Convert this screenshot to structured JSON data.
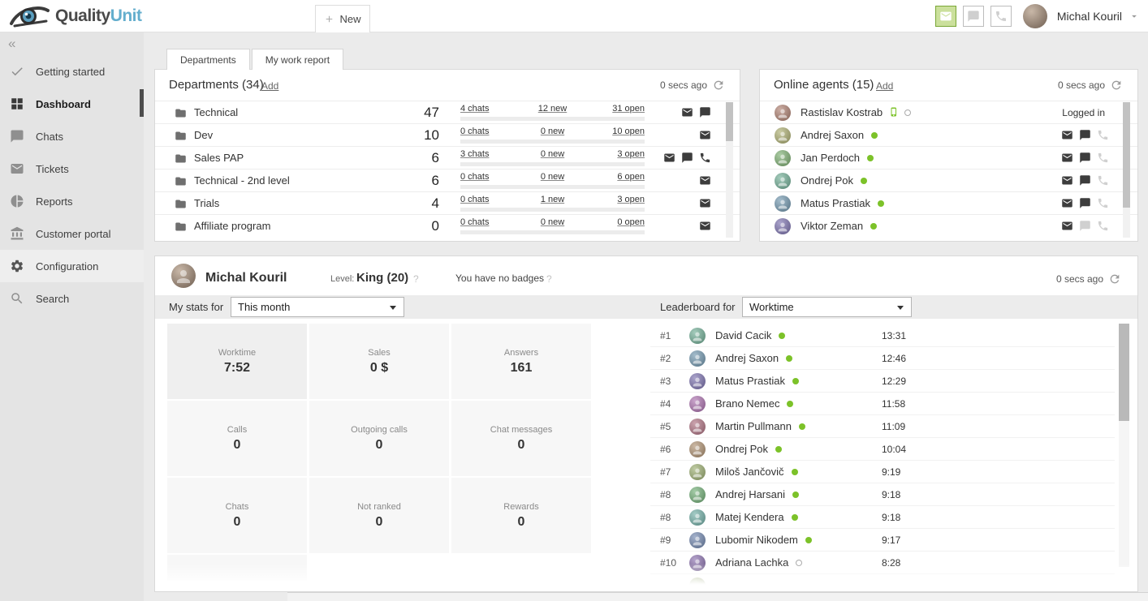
{
  "topbar": {
    "brand_quality": "Quality",
    "brand_unit": "Unit",
    "new_button": "New",
    "user_name": "Michal Kouril"
  },
  "sidebar": {
    "items": [
      {
        "label": "Getting started",
        "icon": "check-icon",
        "active": false,
        "highlighted": false
      },
      {
        "label": "Dashboard",
        "icon": "dashboard-icon",
        "active": true,
        "highlighted": false
      },
      {
        "label": "Chats",
        "icon": "chat-icon",
        "active": false,
        "highlighted": false
      },
      {
        "label": "Tickets",
        "icon": "mail-icon",
        "active": false,
        "highlighted": false
      },
      {
        "label": "Reports",
        "icon": "pie-chart-icon",
        "active": false,
        "highlighted": false
      },
      {
        "label": "Customer portal",
        "icon": "bank-icon",
        "active": false,
        "highlighted": false
      },
      {
        "label": "Configuration",
        "icon": "gear-icon",
        "active": false,
        "highlighted": true
      },
      {
        "label": "Search",
        "icon": "search-icon",
        "active": false,
        "highlighted": false
      }
    ]
  },
  "tabs": [
    {
      "label": "Departments",
      "active": true
    },
    {
      "label": "My work report",
      "active": false
    }
  ],
  "departments_panel": {
    "title": "Departments (34)",
    "add_link": "Add",
    "updated": "0 secs ago",
    "rows": [
      {
        "name": "Technical",
        "count": "47",
        "chats": "4 chats",
        "new": "12 new",
        "open": "31 open",
        "bar_pct": 100,
        "actions": [
          "mail",
          "chat"
        ]
      },
      {
        "name": "Dev",
        "count": "10",
        "chats": "0 chats",
        "new": "0 new",
        "open": "10 open",
        "bar_pct": 21,
        "actions": [
          "mail"
        ]
      },
      {
        "name": "Sales PAP",
        "count": "6",
        "chats": "3 chats",
        "new": "0 new",
        "open": "3 open",
        "bar_pct": 13,
        "actions": [
          "mail",
          "chat",
          "phone"
        ]
      },
      {
        "name": "Technical - 2nd level",
        "count": "6",
        "chats": "0 chats",
        "new": "0 new",
        "open": "6 open",
        "bar_pct": 13,
        "actions": [
          "mail"
        ]
      },
      {
        "name": "Trials",
        "count": "4",
        "chats": "0 chats",
        "new": "1 new",
        "open": "3 open",
        "bar_pct": 9,
        "actions": [
          "mail"
        ]
      },
      {
        "name": "Affiliate program",
        "count": "0",
        "chats": "0 chats",
        "new": "0 new",
        "open": "0 open",
        "bar_pct": 0,
        "actions": [
          "mail"
        ]
      }
    ]
  },
  "agents_panel": {
    "title": "Online agents (15)",
    "add_link": "Add",
    "updated": "0 secs ago",
    "rows": [
      {
        "name": "Rastislav Kostrab",
        "status": "mobile",
        "right_text": "Logged in",
        "actions": []
      },
      {
        "name": "Andrej Saxon",
        "status": "online",
        "right_text": "",
        "actions": [
          {
            "icon": "mail",
            "state": "dark"
          },
          {
            "icon": "chat",
            "state": "dark"
          },
          {
            "icon": "phone",
            "state": "light"
          }
        ]
      },
      {
        "name": "Jan Perdoch",
        "status": "online",
        "right_text": "",
        "actions": [
          {
            "icon": "mail",
            "state": "dark"
          },
          {
            "icon": "chat",
            "state": "dark"
          },
          {
            "icon": "phone",
            "state": "light"
          }
        ]
      },
      {
        "name": "Ondrej Pok",
        "status": "online",
        "right_text": "",
        "actions": [
          {
            "icon": "mail",
            "state": "dark"
          },
          {
            "icon": "chat",
            "state": "dark"
          },
          {
            "icon": "phone",
            "state": "light"
          }
        ]
      },
      {
        "name": "Matus Prastiak",
        "status": "online",
        "right_text": "",
        "actions": [
          {
            "icon": "mail",
            "state": "dark"
          },
          {
            "icon": "chat",
            "state": "dark"
          },
          {
            "icon": "phone",
            "state": "light"
          }
        ]
      },
      {
        "name": "Viktor Zeman",
        "status": "online",
        "right_text": "",
        "actions": [
          {
            "icon": "mail",
            "state": "dark"
          },
          {
            "icon": "chat",
            "state": "light"
          },
          {
            "icon": "phone",
            "state": "light"
          }
        ]
      }
    ]
  },
  "profile_panel": {
    "name": "Michal Kouril",
    "level_label": "Level:",
    "level_value": "King (20)",
    "level_help": "?",
    "badges_text": "You have no badges",
    "badges_help": "?",
    "updated": "0 secs ago",
    "stats_label": "My stats for",
    "stats_period": "This month",
    "leaderboard_label": "Leaderboard for",
    "leaderboard_metric": "Worktime",
    "stats": [
      {
        "label": "Worktime",
        "value": "7:52",
        "highlighted": true
      },
      {
        "label": "Sales",
        "value": "0 $",
        "highlighted": false
      },
      {
        "label": "Answers",
        "value": "161",
        "highlighted": false
      },
      {
        "label": "Calls",
        "value": "0",
        "highlighted": false
      },
      {
        "label": "Outgoing calls",
        "value": "0",
        "highlighted": false
      },
      {
        "label": "Chat messages",
        "value": "0",
        "highlighted": false
      },
      {
        "label": "Chats",
        "value": "0",
        "highlighted": false
      },
      {
        "label": "Not ranked",
        "value": "0",
        "highlighted": false
      },
      {
        "label": "Rewards",
        "value": "0",
        "highlighted": false
      }
    ],
    "leaderboard": [
      {
        "rank": "#1",
        "name": "David Cacik",
        "status": "online",
        "value": "13:31"
      },
      {
        "rank": "#2",
        "name": "Andrej Saxon",
        "status": "online",
        "value": "12:46"
      },
      {
        "rank": "#3",
        "name": "Matus Prastiak",
        "status": "online",
        "value": "12:29"
      },
      {
        "rank": "#4",
        "name": "Brano Nemec",
        "status": "online",
        "value": "11:58"
      },
      {
        "rank": "#5",
        "name": "Martin Pullmann",
        "status": "online",
        "value": "11:09"
      },
      {
        "rank": "#6",
        "name": "Ondrej Pok",
        "status": "online",
        "value": "10:04"
      },
      {
        "rank": "#7",
        "name": "Miloš Jančovič",
        "status": "online",
        "value": "9:19"
      },
      {
        "rank": "#8",
        "name": "Andrej Harsani",
        "status": "online",
        "value": "9:18"
      },
      {
        "rank": "#8",
        "name": "Matej Kendera",
        "status": "online",
        "value": "9:18"
      },
      {
        "rank": "#9",
        "name": "Lubomir Nikodem",
        "status": "online",
        "value": "9:17"
      },
      {
        "rank": "#10",
        "name": "Adriana Lachka",
        "status": "offline",
        "value": "8:28"
      }
    ]
  },
  "colors": {
    "status_online": "#7cc229",
    "mail_button_bg": "#cbe09c",
    "mail_button_border": "#79a736",
    "bar_fill": "#141414",
    "brand_blue": "#64aecd"
  }
}
